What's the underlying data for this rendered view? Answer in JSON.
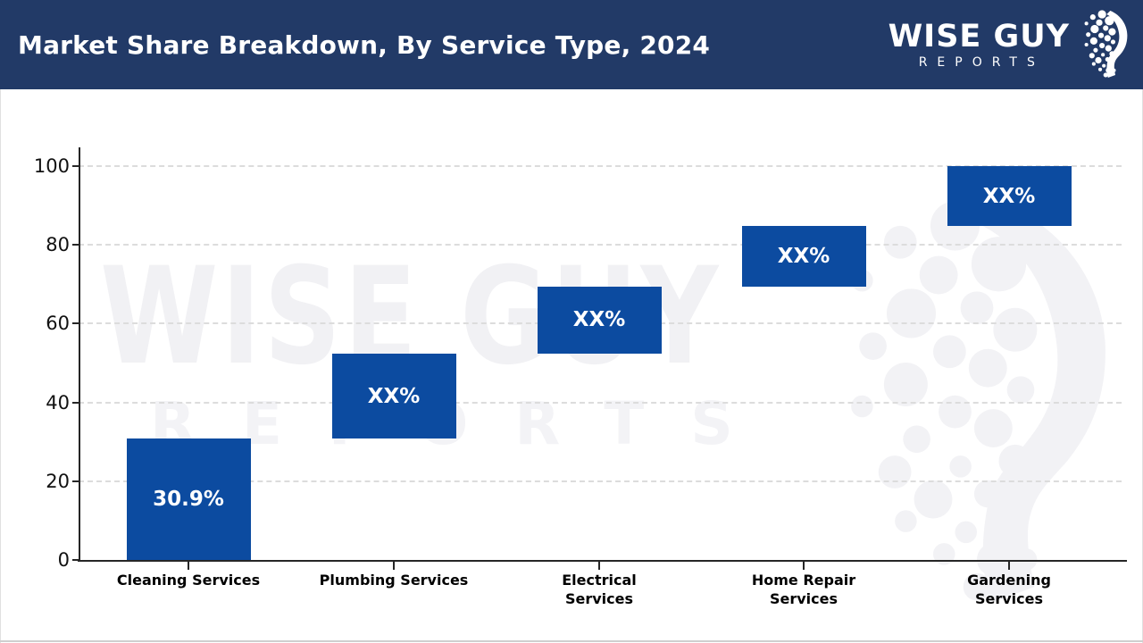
{
  "header": {
    "title": "Market Share Breakdown, By Service Type, 2024",
    "logo": {
      "name": "WISE GUY",
      "subname": "REPORTS"
    }
  },
  "watermark": {
    "line1": "WISE GUY",
    "line2": "REPORTS"
  },
  "chart_data": {
    "type": "bar",
    "subtype": "waterfall",
    "title": "Market Share Breakdown, By Service Type, 2024",
    "xlabel": "",
    "ylabel": "",
    "ylim": [
      0,
      105
    ],
    "y_ticks": [
      0,
      20,
      40,
      60,
      80,
      100
    ],
    "grid": "horizontal-dashed",
    "legend": "none",
    "categories": [
      "Cleaning Services",
      "Plumbing Services",
      "Electrical Services",
      "Home Repair Services",
      "Gardening Services"
    ],
    "category_label_lines": [
      [
        "Cleaning Services"
      ],
      [
        "Plumbing Services"
      ],
      [
        "Electrical",
        "Services"
      ],
      [
        "Home Repair",
        "Services"
      ],
      [
        "Gardening Services"
      ]
    ],
    "segments": [
      {
        "category": "Cleaning Services",
        "start": 0,
        "end": 30.9,
        "value_label": "30.9%"
      },
      {
        "category": "Plumbing Services",
        "start": 30.9,
        "end": 52.3,
        "value_label": "XX%"
      },
      {
        "category": "Electrical Services",
        "start": 52.3,
        "end": 69.5,
        "value_label": "XX%"
      },
      {
        "category": "Home Repair Services",
        "start": 69.5,
        "end": 84.8,
        "value_label": "XX%"
      },
      {
        "category": "Gardening Services",
        "start": 84.8,
        "end": 100,
        "value_label": "XX%"
      }
    ],
    "colors": {
      "bar": "#0c4ba0",
      "header_background": "#223a67",
      "gridline": "#dcdcdc",
      "axis": "#262626",
      "bar_label_text": "#ffffff",
      "watermark": "#f1f1f4"
    }
  }
}
